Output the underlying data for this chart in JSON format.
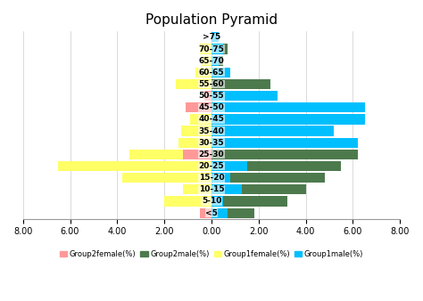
{
  "title": "Population Pyramid",
  "age_groups": [
    "<5",
    "5-10",
    "10-15",
    "15-20",
    "20-25",
    "25-30",
    "30-35",
    "35-40",
    "40-45",
    "45-50",
    "50-55",
    "55-60",
    "60-65",
    "65-70",
    "70-75",
    ">75"
  ],
  "group2_female": [
    0.5,
    0.0,
    0.0,
    0.0,
    0.0,
    1.2,
    0.0,
    0.0,
    0.0,
    1.1,
    0.3,
    0.0,
    0.0,
    0.0,
    0.0,
    0.0
  ],
  "group1_female": [
    0.0,
    2.0,
    1.2,
    3.8,
    6.5,
    3.5,
    1.4,
    1.3,
    0.9,
    0.0,
    0.0,
    1.5,
    0.7,
    0.4,
    0.5,
    0.0
  ],
  "group2_male": [
    1.8,
    3.2,
    4.0,
    4.8,
    5.5,
    6.2,
    2.8,
    2.3,
    2.0,
    2.0,
    2.2,
    2.5,
    0.8,
    0.5,
    0.7,
    0.3
  ],
  "group1_male": [
    0.7,
    0.5,
    1.3,
    0.8,
    1.5,
    0.0,
    6.2,
    5.2,
    6.5,
    6.5,
    2.8,
    0.0,
    0.8,
    0.3,
    0.5,
    0.3
  ],
  "color_group2_female": "#FF9999",
  "color_group1_female": "#FFFF66",
  "color_group2_male": "#4D7A4D",
  "color_group1_male": "#00BFFF",
  "xlim": [
    -8.0,
    8.0
  ],
  "xticks": [
    -8,
    -6,
    -4,
    -2,
    0,
    2,
    4,
    6,
    8
  ],
  "xticklabels": [
    "8.00",
    "6.00",
    "4.00",
    "2.00",
    "0.00",
    "2.00",
    "4.00",
    "6.00",
    "8.00"
  ],
  "legend_labels": [
    "Group2female(%)",
    "Group2male(%)",
    "Group1female(%)",
    "Group1male(%)"
  ]
}
